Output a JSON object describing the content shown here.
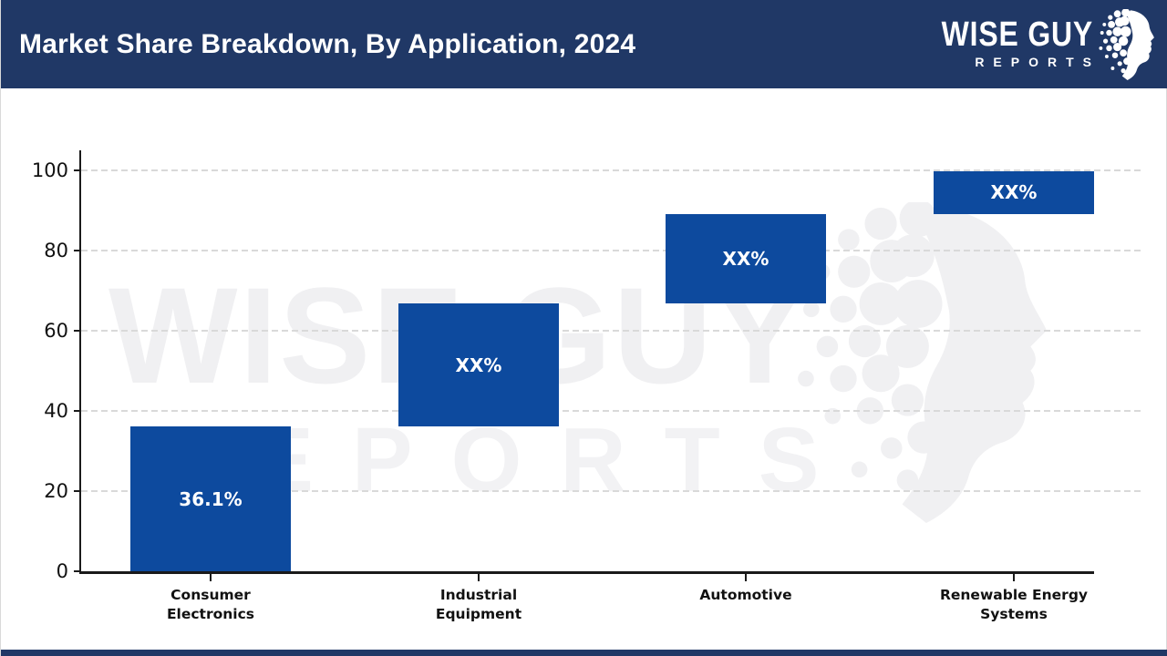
{
  "header": {
    "title": "Market Share Breakdown, By Application, 2024",
    "bg_color": "#203866",
    "logo": {
      "line1": "WISE GUY",
      "line2": "REPORTS"
    }
  },
  "watermark": {
    "line1": "WISE GUY",
    "line2": "REPORTS"
  },
  "footer": {
    "bg_color": "#203866"
  },
  "chart_data": {
    "type": "bar",
    "subtype": "waterfall",
    "title": "Market Share Breakdown, By Application, 2024",
    "categories": [
      "Consumer\nElectronics",
      "Industrial\nEquipment",
      "Automotive",
      "Renewable Energy\nSystems"
    ],
    "segments": [
      {
        "category": "Consumer\nElectronics",
        "start": 0,
        "end": 36.1,
        "label": "36.1%"
      },
      {
        "category": "Industrial\nEquipment",
        "start": 36.1,
        "end": 66.8,
        "label": "XX%"
      },
      {
        "category": "Automotive",
        "start": 66.8,
        "end": 89.1,
        "label": "XX%"
      },
      {
        "category": "Renewable Energy\nSystems",
        "start": 89.1,
        "end": 99.8,
        "label": "XX%"
      }
    ],
    "segment_sizes_est": [
      36.1,
      30.7,
      22.3,
      10.7
    ],
    "cumulative_est": [
      36.1,
      66.8,
      89.1,
      100
    ],
    "xlabel": "",
    "ylabel": "",
    "ylim": [
      0,
      100
    ],
    "yticks": [
      0,
      20,
      40,
      60,
      80,
      100
    ],
    "grid": "dashed-horizontal",
    "legend": "none",
    "bar_color": "#0d4a9e",
    "value_label_color": "#ffffff"
  }
}
